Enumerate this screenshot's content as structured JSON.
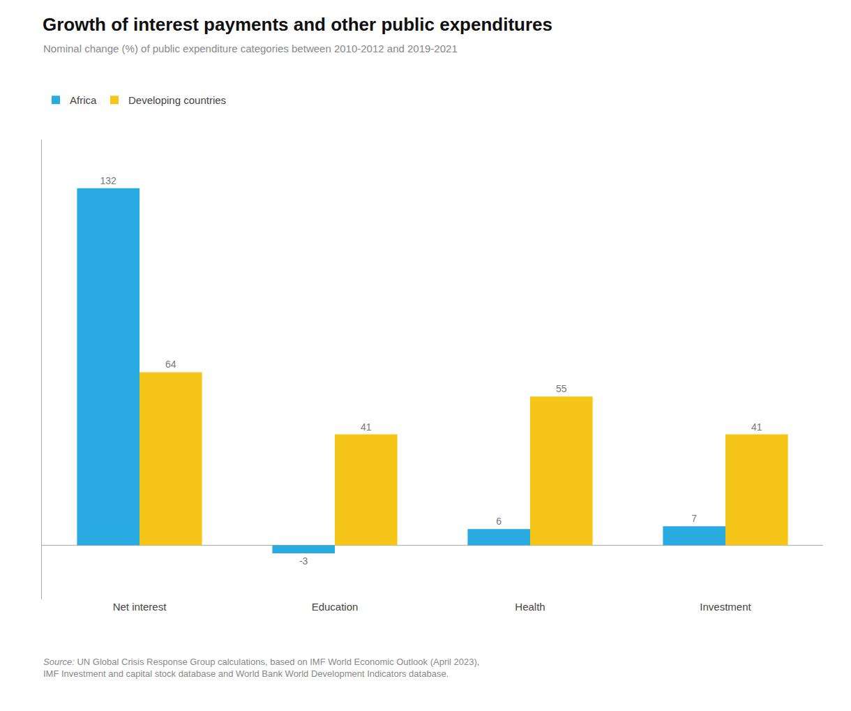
{
  "chart_data": {
    "type": "bar",
    "title": "Growth of interest payments and other public expenditures",
    "subtitle": "Nominal change (%) of public expenditure categories between 2010-2012 and 2019-2021",
    "categories": [
      "Net interest",
      "Education",
      "Health",
      "Investment"
    ],
    "series": [
      {
        "name": "Africa",
        "color": "#29ABE2",
        "values": [
          132,
          -3,
          6,
          7
        ]
      },
      {
        "name": "Developing countries",
        "color": "#F5C518",
        "values": [
          64,
          41,
          55,
          41
        ]
      }
    ],
    "ylim": [
      -20,
      150
    ],
    "yticks": [],
    "grid": false,
    "legend": "top",
    "data_labels": true,
    "tick_labels": "x",
    "annotations": [
      "Source:",
      "UN Global Crisis Response Group calculations, based on IMF World Economic Outlook (April 2023),\nIMF Investment and capital stock database and World Bank World Development Indicators database."
    ]
  }
}
